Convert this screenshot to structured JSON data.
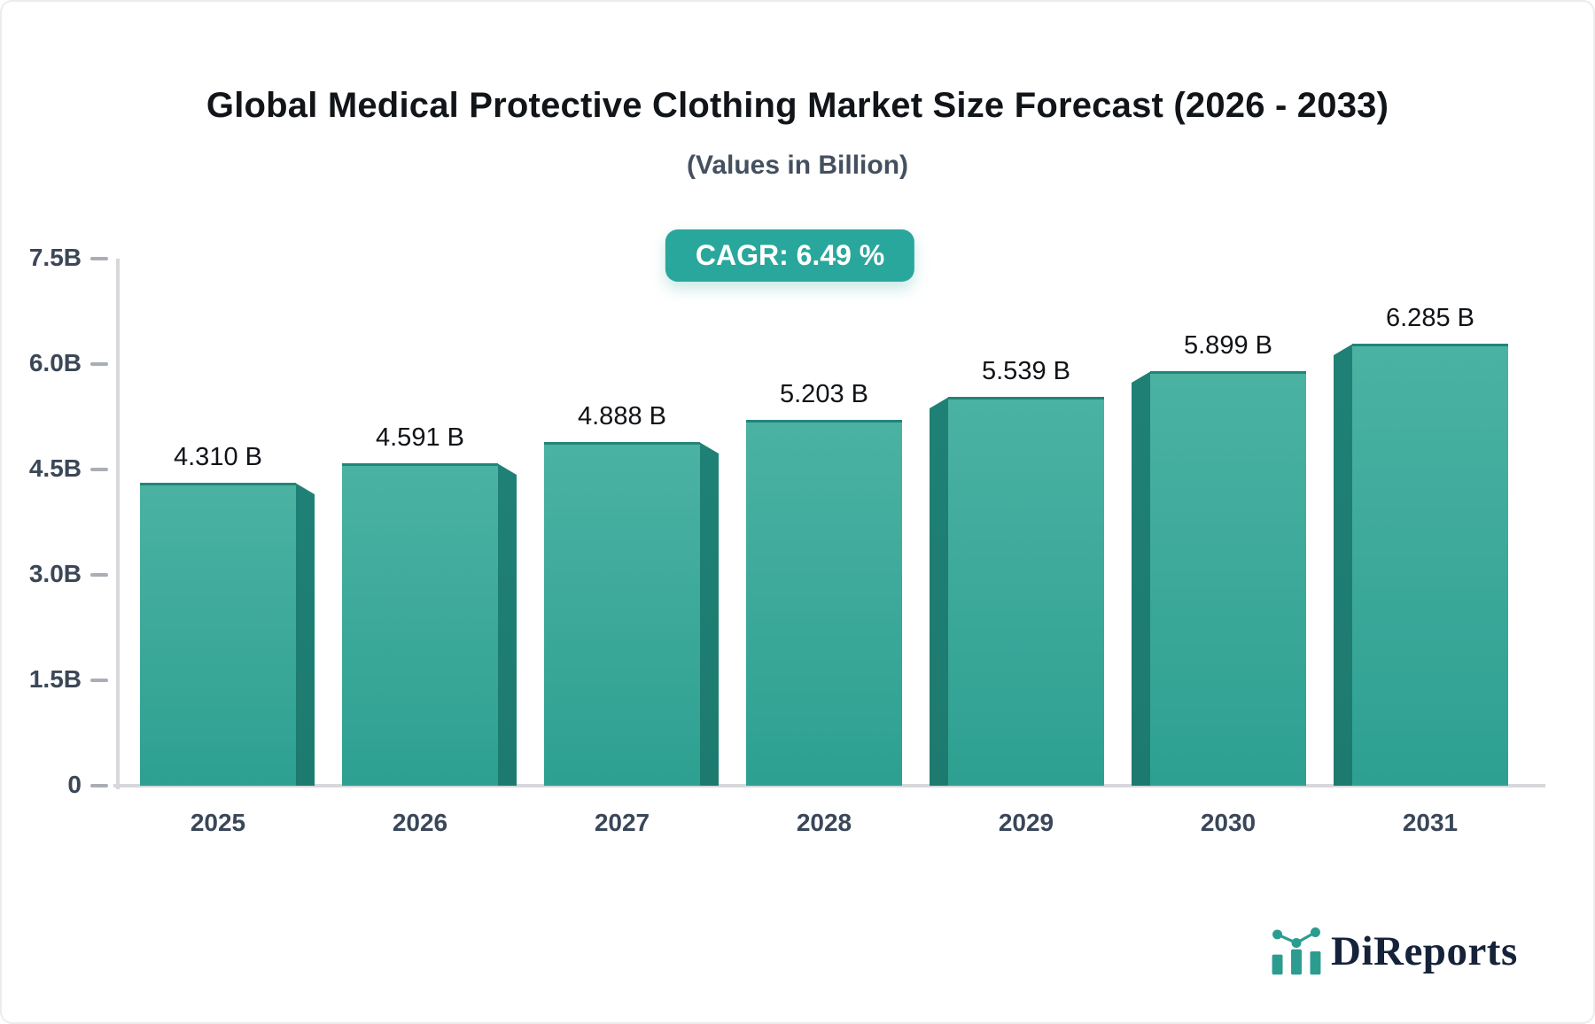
{
  "title": "Global Medical Protective Clothing Market Size Forecast (2026 - 2033)",
  "subtitle": "(Values in Billion)",
  "cagr_badge": "CAGR: 6.49 %",
  "chart_data": {
    "type": "bar",
    "title": "Global Medical Protective Clothing Market Size Forecast (2026 - 2033)",
    "subtitle": "(Values in Billion)",
    "categories": [
      "2025",
      "2026",
      "2027",
      "2028",
      "2029",
      "2030",
      "2031"
    ],
    "values": [
      4.31,
      4.591,
      4.888,
      5.203,
      5.539,
      5.899,
      6.285
    ],
    "value_labels": [
      "4.310 B",
      "4.591 B",
      "4.888 B",
      "5.203 B",
      "5.539 B",
      "5.899 B",
      "6.285 B"
    ],
    "y_ticks": [
      {
        "label": "0",
        "value": 0
      },
      {
        "label": "1.5B",
        "value": 1.5
      },
      {
        "label": "3.0B",
        "value": 3.0
      },
      {
        "label": "4.5B",
        "value": 4.5
      },
      {
        "label": "6.0B",
        "value": 6.0
      },
      {
        "label": "7.5B",
        "value": 7.5
      }
    ],
    "ylim": [
      0,
      7.5
    ],
    "grid": false,
    "legend": "none",
    "bar_color_top": "#4bb2a2",
    "bar_color_bottom": "#2da092",
    "bar_side_color": "#1e7b70",
    "axis_color": "#d6d8dc",
    "tick_color": "#a9aeb6"
  },
  "badge_color": "#2aa79c",
  "logo": {
    "text": "DiReports",
    "icon": "mini-bar-chart-icon",
    "text_color": "#15223a",
    "accent_color": "#2c9c90"
  }
}
